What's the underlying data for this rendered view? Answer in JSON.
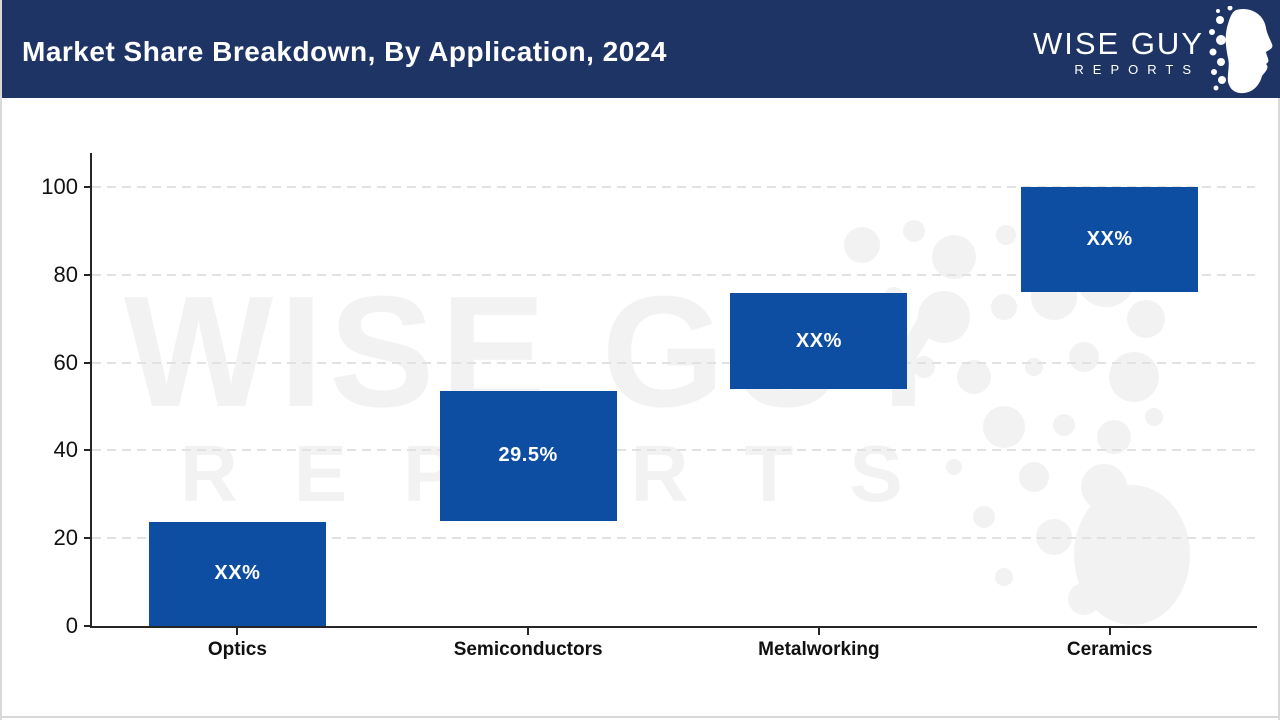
{
  "header": {
    "title": "Market Share Breakdown, By Application, 2024",
    "bg_color": "#1e3465",
    "logo": {
      "line1": "WISE GUY",
      "line2": "REPORTS"
    }
  },
  "watermark": {
    "line1": "WISE GUY",
    "line2": "REPORTS"
  },
  "chart_data": {
    "type": "bar",
    "subtype": "floating-segment-waterfall",
    "title": "Market Share Breakdown, By Application, 2024",
    "categories": [
      "Optics",
      "Semiconductors",
      "Metalworking",
      "Ceramics"
    ],
    "bars": [
      {
        "category": "Optics",
        "start": 0,
        "end": 23.8,
        "label": "XX%"
      },
      {
        "category": "Semiconductors",
        "start": 24,
        "end": 53.5,
        "label": "29.5%"
      },
      {
        "category": "Metalworking",
        "start": 54,
        "end": 75.8,
        "label": "XX%"
      },
      {
        "category": "Ceramics",
        "start": 76,
        "end": 100,
        "label": "XX%"
      }
    ],
    "yticks": [
      0,
      20,
      40,
      60,
      80,
      100
    ],
    "ylim": [
      0,
      105
    ],
    "xlabel": "",
    "ylabel": "",
    "grid": "horizontal-dashed",
    "legend": "none",
    "bar_color": "#0d4da2",
    "bar_label_color": "#ffffff",
    "axis_color": "#262626",
    "gridline_color": "#e2e2e2"
  }
}
